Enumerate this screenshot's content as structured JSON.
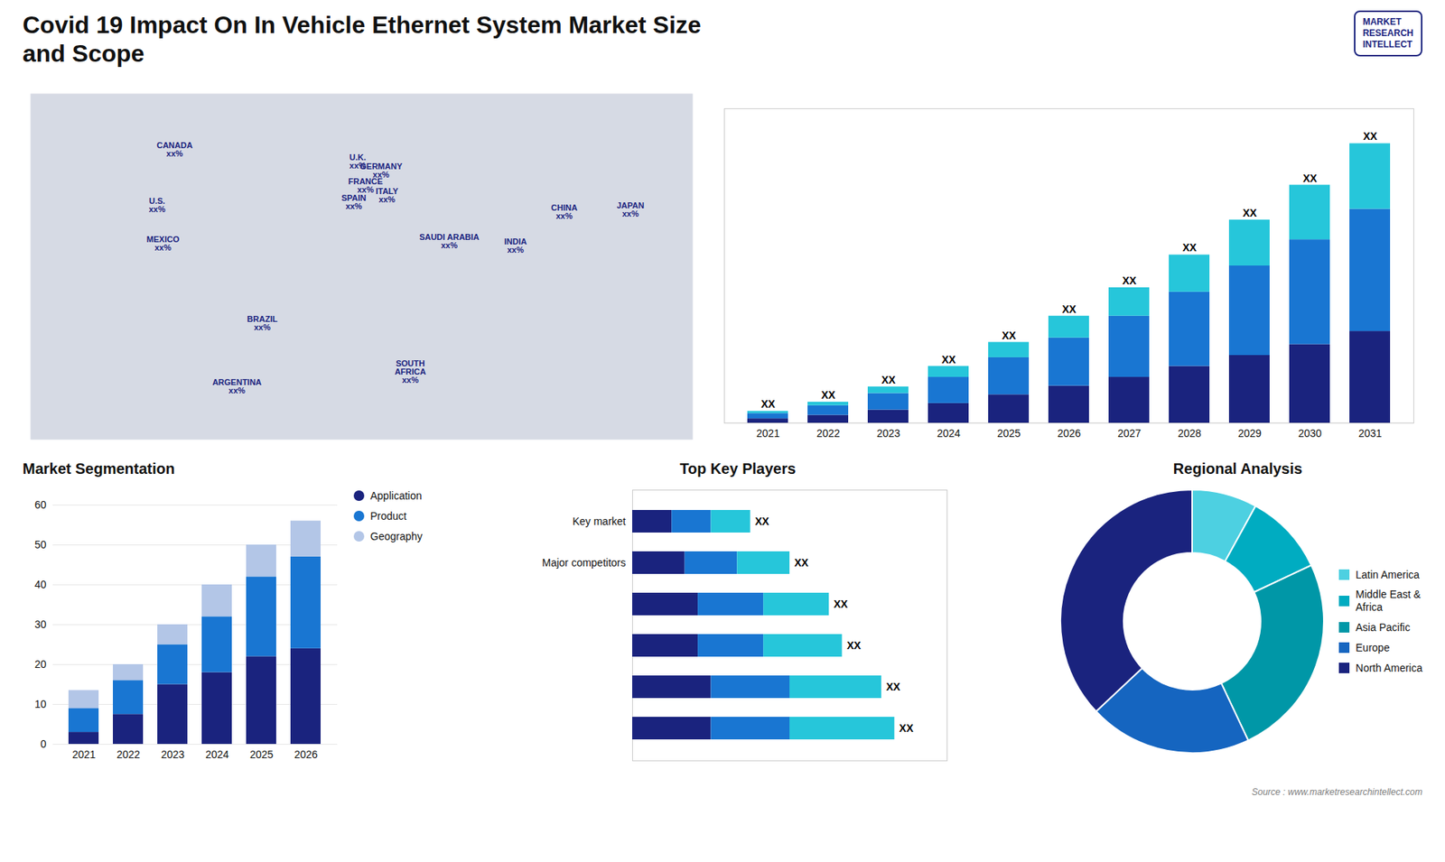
{
  "chart_data": [
    {
      "type": "bar",
      "title": "Covid 19 Impact On In Vehicle Ethernet System Market Size\nand Scope",
      "logo": "MARKET\nRESEARCH\nINTELLECT",
      "source": "Source : www.marketresearchintellect.com",
      "stacked": true,
      "categories": [
        "2021",
        "2022",
        "2023",
        "2024",
        "2025",
        "2026",
        "2027",
        "2028",
        "2029",
        "2030",
        "2031"
      ],
      "series": [
        {
          "color": "#1a237e",
          "values": [
            1.0,
            1.8,
            3.0,
            4.5,
            6.5,
            8.5,
            10.5,
            13.0,
            15.5,
            18.0,
            21.0
          ]
        },
        {
          "color": "#1976d2",
          "values": [
            1.2,
            2.2,
            3.8,
            6.0,
            8.5,
            11.0,
            14.0,
            17.0,
            20.5,
            24.0,
            28.0
          ]
        },
        {
          "color": "#26c6da",
          "values": [
            0.5,
            0.8,
            1.5,
            2.5,
            3.5,
            5.0,
            6.5,
            8.5,
            10.5,
            12.5,
            15.0
          ]
        }
      ],
      "annotations": [
        "XX",
        "XX",
        "XX",
        "XX",
        "XX",
        "XX",
        "XX",
        "XX",
        "XX",
        "XX",
        "XX"
      ],
      "ylim": [
        0,
        72
      ],
      "tick_labels": "x"
    },
    {
      "type": "map",
      "points": [
        {
          "name": "CANADA",
          "label": "xx%",
          "lon": -96,
          "lat": 62
        },
        {
          "name": "U.S.",
          "label": "xx%",
          "lon": -105,
          "lat": 39
        },
        {
          "name": "MEXICO",
          "label": "xx%",
          "lon": -102,
          "lat": 23
        },
        {
          "name": "BRAZIL",
          "label": "xx%",
          "lon": -51,
          "lat": -10
        },
        {
          "name": "ARGENTINA",
          "label": "xx%",
          "lon": -64,
          "lat": -36
        },
        {
          "name": "U.K.",
          "label": "xx%",
          "lon": -2,
          "lat": 57
        },
        {
          "name": "FRANCE",
          "label": "xx%",
          "lon": 2,
          "lat": 47
        },
        {
          "name": "SPAIN",
          "label": "xx%",
          "lon": -4,
          "lat": 40
        },
        {
          "name": "GERMANY",
          "label": "xx%",
          "lon": 10,
          "lat": 53
        },
        {
          "name": "ITALY",
          "label": "xx%",
          "lon": 13,
          "lat": 43
        },
        {
          "name": "SAUDI ARABIA",
          "label": "xx%",
          "lon": 45,
          "lat": 24
        },
        {
          "name": "SOUTH\nAFRICA",
          "label": "xx%",
          "lon": 25,
          "lat": -30
        },
        {
          "name": "CHINA",
          "label": "xx%",
          "lon": 104,
          "lat": 36
        },
        {
          "name": "INDIA",
          "label": "xx%",
          "lon": 79,
          "lat": 22
        },
        {
          "name": "JAPAN",
          "label": "xx%",
          "lon": 138,
          "lat": 37
        }
      ],
      "xlim": [
        -170,
        170
      ],
      "ylim": [
        -58,
        85
      ],
      "tick_labels": false
    },
    {
      "type": "bar",
      "title": "Market Segmentation",
      "stacked": true,
      "categories": [
        "2021",
        "2022",
        "2023",
        "2024",
        "2025",
        "2026"
      ],
      "series": [
        {
          "name": "Application",
          "color": "#1a237e",
          "values": [
            3.0,
            7.5,
            15.0,
            18.0,
            22.0,
            24.0
          ]
        },
        {
          "name": "Product",
          "color": "#1976d2",
          "values": [
            6.0,
            8.5,
            10.0,
            14.0,
            20.0,
            23.0
          ]
        },
        {
          "name": "Geography",
          "color": "#b3c6e7",
          "values": [
            4.5,
            4.0,
            5.0,
            8.0,
            8.0,
            9.0
          ]
        }
      ],
      "ylim": [
        0,
        60
      ],
      "yticks": [
        0,
        10,
        20,
        30,
        40,
        50,
        60
      ],
      "grid": true,
      "legend": "right"
    },
    {
      "type": "bar",
      "title": "Top Key Players",
      "orientation": "horizontal",
      "stacked": true,
      "categories": [
        null,
        null,
        null,
        null,
        "Major competitors",
        "Key market"
      ],
      "series": [
        {
          "color": "#1a237e",
          "values": [
            3.0,
            3.0,
            2.5,
            2.5,
            2.0,
            1.5
          ]
        },
        {
          "color": "#1976d2",
          "values": [
            3.0,
            3.0,
            2.5,
            2.5,
            2.0,
            1.5
          ]
        },
        {
          "color": "#26c6da",
          "values": [
            4.0,
            3.5,
            3.0,
            2.5,
            2.0,
            1.5
          ]
        }
      ],
      "annotations": [
        "XX",
        "XX",
        "XX",
        "XX",
        "XX",
        "XX"
      ],
      "xlim": [
        0,
        12
      ],
      "tick_labels": "y"
    },
    {
      "type": "pie",
      "title": "Regional Analysis",
      "categories": [
        "Latin America",
        "Middle East &\nAfrica",
        "Asia Pacific",
        "Europe",
        "North America"
      ],
      "values": [
        8,
        10,
        25,
        20,
        37
      ],
      "colors": [
        "#4dd0e1",
        "#00acc1",
        "#0097a7",
        "#1565c0",
        "#1a237e"
      ],
      "legend": "right"
    }
  ]
}
